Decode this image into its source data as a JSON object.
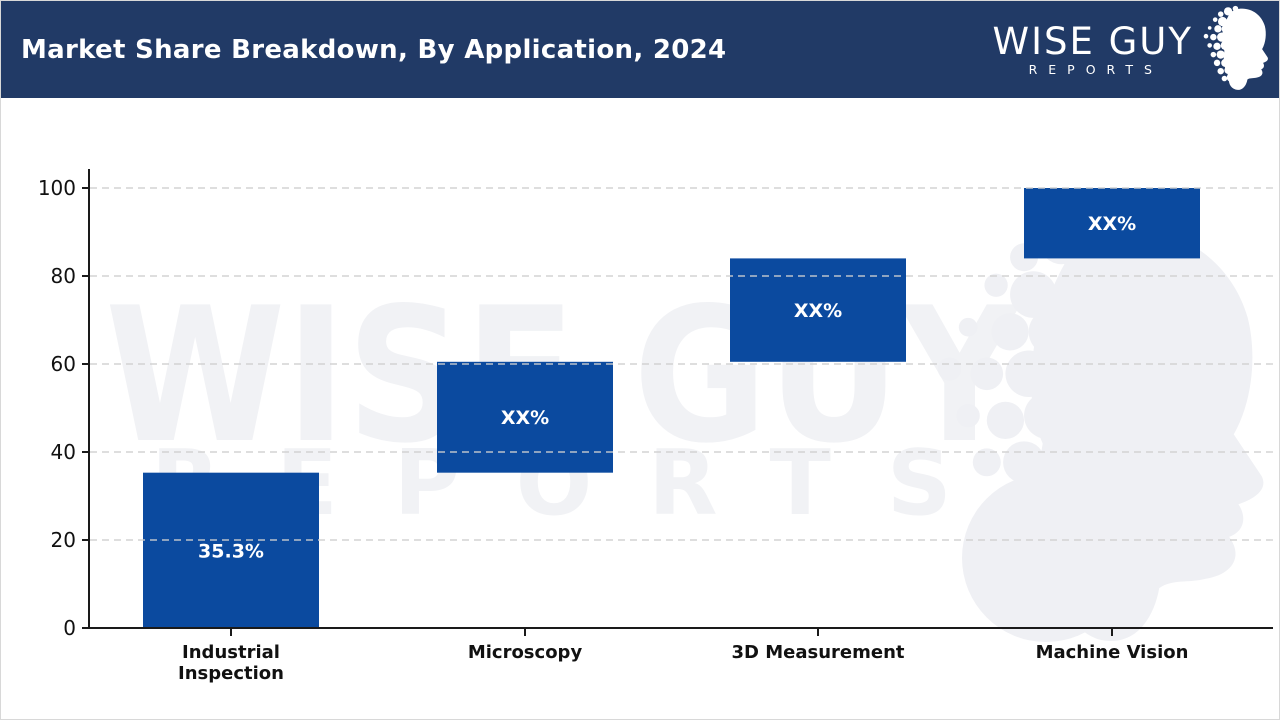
{
  "header": {
    "title": "Market Share Breakdown, By Application, 2024",
    "logo": {
      "line1": "WISE GUY",
      "line2": "REPORTS"
    }
  },
  "watermark": {
    "line1": "WISE GUY",
    "line2": "REPORTS"
  },
  "chart_data": {
    "type": "bar",
    "subtype": "waterfall",
    "title": "Market Share Breakdown, By Application, 2024",
    "categories": [
      "Industrial Inspection",
      "Microscopy",
      "3D Measurement",
      "Machine Vision"
    ],
    "segments": [
      {
        "category": "Industrial Inspection",
        "label_lines": [
          "Industrial",
          "Inspection"
        ],
        "start": 0,
        "end": 35.3,
        "value_label": "35.3%"
      },
      {
        "category": "Microscopy",
        "label_lines": [
          "Microscopy"
        ],
        "start": 35.3,
        "end": 60.5,
        "value_label": "XX%"
      },
      {
        "category": "3D Measurement",
        "label_lines": [
          "3D Measurement"
        ],
        "start": 60.5,
        "end": 84,
        "value_label": "XX%"
      },
      {
        "category": "Machine Vision",
        "label_lines": [
          "Machine Vision"
        ],
        "start": 84,
        "end": 100,
        "value_label": "XX%"
      }
    ],
    "yticks": [
      0,
      20,
      40,
      60,
      80,
      100
    ],
    "ylim": [
      0,
      100
    ],
    "xlabel": "",
    "ylabel": "",
    "grid": "horizontal-dashed-over-bars",
    "legend": "none",
    "colors": {
      "bar": "#0b4a9f",
      "header_bg": "#213a66",
      "grid": "#cfcfcf",
      "axis": "#1a1a1a",
      "bar_label": "#ffffff",
      "tick_label": "#111111",
      "watermark": "#f1f2f5"
    }
  }
}
